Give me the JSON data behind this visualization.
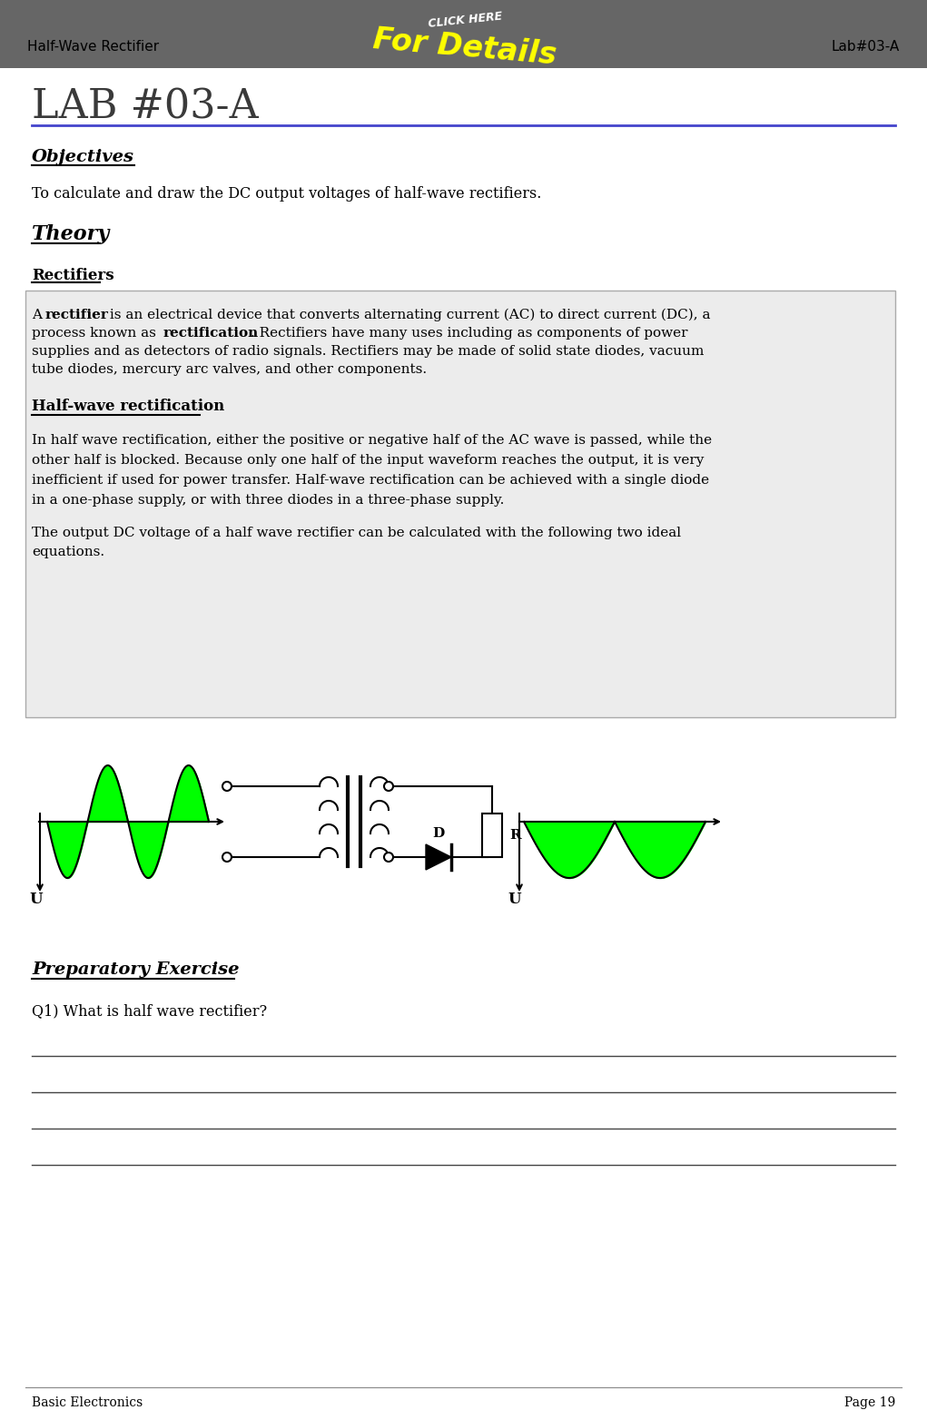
{
  "header_bg": "#666666",
  "header_text_left": "Half-Wave Rectifier",
  "header_text_right": "Lab#03-A",
  "header_click_here": "CLICK HERE",
  "header_for_details": "For Details",
  "header_yellow_color": "#FFFF00",
  "page_bg": "#FFFFFF",
  "title": "LAB #03-A",
  "title_color": "#3a3a3a",
  "title_underline_color": "#4444cc",
  "section1_title": "Objectives",
  "section1_text": "To calculate and draw the DC output voltages of half-wave rectifiers.",
  "section2_title": "Theory",
  "section3_title": "Rectifiers",
  "halfwave_title": "Half-wave rectification",
  "prep_title": "Preparatory Exercise",
  "prep_q1": "Q1) What is half wave rectifier?",
  "footer_left": "Basic Electronics",
  "footer_right": "Page 19",
  "green_color": "#00FF00"
}
